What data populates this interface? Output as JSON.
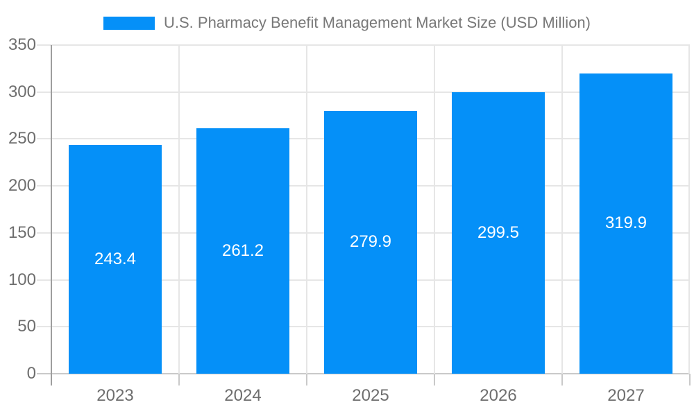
{
  "legend": {
    "position": "top"
  },
  "chart_data": {
    "type": "bar",
    "title": "U.S. Pharmacy Benefit Management Market Size (USD Million)",
    "xlabel": "",
    "ylabel": "",
    "categories": [
      "2023",
      "2024",
      "2025",
      "2026",
      "2027"
    ],
    "values": [
      243.4,
      261.2,
      279.9,
      299.5,
      319.9
    ],
    "bar_labels": [
      "243.4",
      "261.2",
      "279.9",
      "299.5",
      "319.9"
    ],
    "ylim": [
      0,
      350
    ],
    "ytick_step": 50,
    "ytick_labels": [
      "0",
      "50",
      "100",
      "150",
      "200",
      "250",
      "300",
      "350"
    ],
    "grid": true,
    "legend_position": "top",
    "colors": {
      "bar": "#0590f8",
      "bar_label_text": "#ffffff",
      "legend_text": "#787878",
      "tick_text": "#6e6e6e",
      "gridline": "#e6e6e6",
      "axis_line": "#9e9e9e",
      "baseline": "#c9c9c9"
    }
  }
}
